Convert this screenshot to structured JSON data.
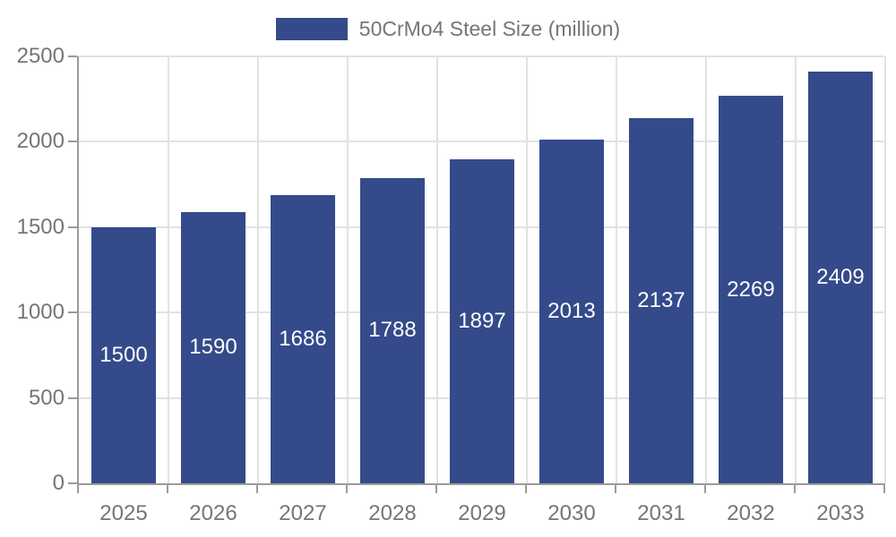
{
  "legend": {
    "label": "50CrMo4 Steel Size (million)"
  },
  "colors": {
    "bar": "#344A8A",
    "grid": "#E2E2E2",
    "axis": "#9B9B9B",
    "tick_text": "#757575",
    "bar_label": "#FFFFFF",
    "background": "#FFFFFF"
  },
  "chart_data": {
    "type": "bar",
    "title": "50CrMo4 Steel Size (million)",
    "categories": [
      "2025",
      "2026",
      "2027",
      "2028",
      "2029",
      "2030",
      "2031",
      "2032",
      "2033"
    ],
    "values": [
      1500,
      1590,
      1686,
      1788,
      1897,
      2013,
      2137,
      2269,
      2409
    ],
    "xlabel": "",
    "ylabel": "",
    "ylim": [
      0,
      2500
    ],
    "yticks": [
      0,
      500,
      1000,
      1500,
      2000,
      2500
    ],
    "grid": true,
    "show_value_labels": true,
    "legend_position": "top-center"
  }
}
